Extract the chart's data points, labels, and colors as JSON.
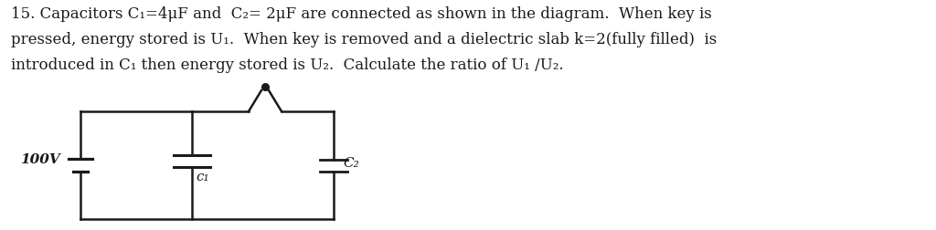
{
  "background_color": "#ffffff",
  "text_color": "#1a1a1a",
  "line1": "15. Capacitors C₁=4μF and  C₂= 2μF are connected as shown in the diagram.  When key is",
  "line2": "pressed, energy stored is U₁.  When key is removed and a dielectric slab k=2(fully filled)  is",
  "line3": "introduced in C₁ then energy stored is U₂.  Calculate the ratio of U₁ /U₂.",
  "font_size": 12.0,
  "circuit_font_size": 11.0,
  "battery_label": "100V",
  "c1_label": "c₁",
  "c2_label": "C₂",
  "lw": 1.8,
  "col": "#1a1a1a"
}
